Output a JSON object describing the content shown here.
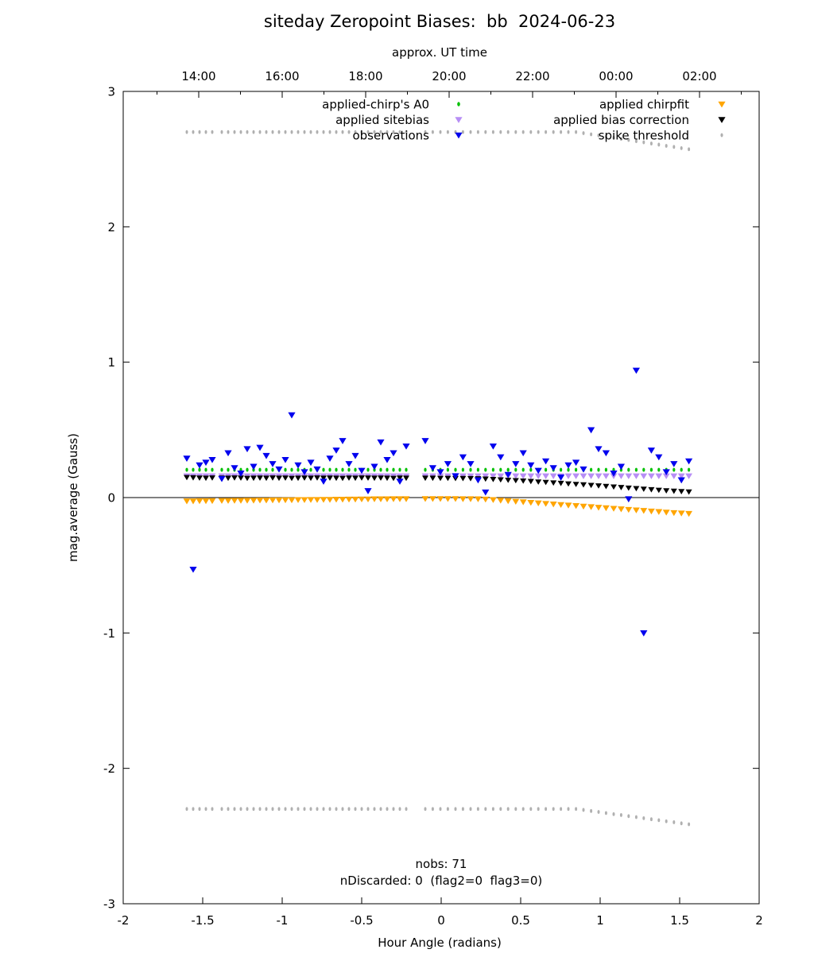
{
  "chart_data": {
    "type": "scatter",
    "title": "siteday Zeropoint Biases:  bb  2024-06-23",
    "x2label": "approx. UT time",
    "xlabel": "Hour Angle (radians)",
    "ylabel": "mag.average (Gauss)",
    "xlim": [
      -2,
      2
    ],
    "ylim": [
      -3,
      3
    ],
    "grid": false,
    "zero_line": true,
    "legend_position": "top-inside-two-columns",
    "notes": [
      "nobs: 71",
      "nDiscarded: 0  (flag2=0  flag3=0)"
    ],
    "x_ticks": [
      {
        "v": -2,
        "label": "-2"
      },
      {
        "v": -1.5,
        "label": "-1.5"
      },
      {
        "v": -1,
        "label": "-1"
      },
      {
        "v": -0.5,
        "label": "-0.5"
      },
      {
        "v": 0,
        "label": "0"
      },
      {
        "v": 0.5,
        "label": "0.5"
      },
      {
        "v": 1,
        "label": "1"
      },
      {
        "v": 1.5,
        "label": "1.5"
      },
      {
        "v": 2,
        "label": "2"
      }
    ],
    "x2_ticks": [
      {
        "v": -1.525,
        "label": "14:00"
      },
      {
        "v": -1.0,
        "label": "16:00"
      },
      {
        "v": -0.475,
        "label": "18:00"
      },
      {
        "v": 0.05,
        "label": "20:00"
      },
      {
        "v": 0.575,
        "label": "22:00"
      },
      {
        "v": 1.1,
        "label": "00:00"
      },
      {
        "v": 1.625,
        "label": "02:00"
      }
    ],
    "x2_minor_ticks": [
      -1.7875,
      -1.2625,
      -0.7375,
      -0.2125,
      0.3125,
      0.8375,
      1.3625,
      1.8875
    ],
    "y_ticks": [
      {
        "v": -3,
        "label": "-3"
      },
      {
        "v": -2,
        "label": "-2"
      },
      {
        "v": -1,
        "label": "-1"
      },
      {
        "v": 0,
        "label": "0"
      },
      {
        "v": 1,
        "label": "1"
      },
      {
        "v": 2,
        "label": "2"
      },
      {
        "v": 3,
        "label": "3"
      }
    ],
    "legend_entries": [
      {
        "label": "applied-chirp's A0",
        "marker": "dot",
        "color": "#00c000",
        "col": 0,
        "row": 0
      },
      {
        "label": "applied chirpfit",
        "marker": "triangle-down",
        "color": "#ffa500",
        "col": 1,
        "row": 0
      },
      {
        "label": "applied sitebias",
        "marker": "triangle-down",
        "color": "#b78ef5",
        "col": 0,
        "row": 1
      },
      {
        "label": "applied bias correction",
        "marker": "triangle-down",
        "color": "#000000",
        "col": 1,
        "row": 1
      },
      {
        "label": "observations",
        "marker": "triangle-down",
        "color": "#0000ee",
        "col": 0,
        "row": 2
      },
      {
        "label": "spike threshold",
        "marker": "small-dot",
        "color": "#b0b0b0",
        "col": 1,
        "row": 2
      }
    ],
    "x": [
      -1.6,
      -1.56,
      -1.52,
      -1.48,
      -1.44,
      -1.38,
      -1.34,
      -1.3,
      -1.26,
      -1.22,
      -1.18,
      -1.14,
      -1.1,
      -1.06,
      -1.02,
      -0.98,
      -0.94,
      -0.9,
      -0.86,
      -0.82,
      -0.78,
      -0.74,
      -0.7,
      -0.66,
      -0.62,
      -0.58,
      -0.54,
      -0.5,
      -0.46,
      -0.42,
      -0.38,
      -0.34,
      -0.3,
      -0.26,
      -0.22,
      -0.1,
      -0.053,
      -0.005,
      0.042,
      0.09,
      0.137,
      0.185,
      0.232,
      0.279,
      0.327,
      0.374,
      0.421,
      0.469,
      0.516,
      0.564,
      0.611,
      0.658,
      0.706,
      0.753,
      0.8,
      0.848,
      0.895,
      0.943,
      0.99,
      1.037,
      1.085,
      1.132,
      1.179,
      1.227,
      1.274,
      1.322,
      1.369,
      1.416,
      1.464,
      1.511,
      1.558
    ],
    "series": [
      {
        "name": "applied-chirp's A0",
        "marker": "dot",
        "color": "#00c000",
        "size": 1.6,
        "y_const": 0.205
      },
      {
        "name": "applied chirpfit",
        "marker": "triangle-down",
        "color": "#ffa500",
        "size": 4.4,
        "y": [
          -0.025,
          -0.025,
          -0.024,
          -0.024,
          -0.023,
          -0.022,
          -0.022,
          -0.021,
          -0.021,
          -0.02,
          -0.02,
          -0.019,
          -0.019,
          -0.018,
          -0.018,
          -0.017,
          -0.017,
          -0.016,
          -0.016,
          -0.015,
          -0.015,
          -0.014,
          -0.014,
          -0.013,
          -0.013,
          -0.012,
          -0.012,
          -0.011,
          -0.011,
          -0.01,
          -0.01,
          -0.01,
          -0.009,
          -0.009,
          -0.009,
          -0.008,
          -0.008,
          -0.008,
          -0.008,
          -0.008,
          -0.009,
          -0.009,
          -0.01,
          -0.012,
          -0.016,
          -0.02,
          -0.024,
          -0.028,
          -0.032,
          -0.036,
          -0.04,
          -0.044,
          -0.048,
          -0.052,
          -0.056,
          -0.06,
          -0.064,
          -0.068,
          -0.072,
          -0.076,
          -0.08,
          -0.084,
          -0.088,
          -0.092,
          -0.096,
          -0.1,
          -0.104,
          -0.108,
          -0.112,
          -0.115,
          -0.118
        ]
      },
      {
        "name": "applied sitebias",
        "marker": "triangle-down",
        "color": "#b78ef5",
        "size": 4.4,
        "y_const": 0.16
      },
      {
        "name": "applied bias correction",
        "marker": "triangle-down",
        "color": "#000000",
        "size": 4.0,
        "y": [
          0.15,
          0.148,
          0.146,
          0.145,
          0.147,
          0.146,
          0.145,
          0.147,
          0.146,
          0.144,
          0.145,
          0.146,
          0.145,
          0.147,
          0.145,
          0.146,
          0.144,
          0.145,
          0.146,
          0.145,
          0.147,
          0.145,
          0.146,
          0.145,
          0.144,
          0.146,
          0.145,
          0.147,
          0.146,
          0.145,
          0.146,
          0.145,
          0.144,
          0.146,
          0.145,
          0.145,
          0.145,
          0.144,
          0.144,
          0.143,
          0.143,
          0.142,
          0.141,
          0.139,
          0.136,
          0.133,
          0.13,
          0.127,
          0.124,
          0.121,
          0.117,
          0.114,
          0.11,
          0.107,
          0.103,
          0.099,
          0.096,
          0.092,
          0.088,
          0.084,
          0.08,
          0.076,
          0.072,
          0.068,
          0.064,
          0.06,
          0.056,
          0.052,
          0.049,
          0.046,
          0.043
        ]
      },
      {
        "name": "observations",
        "marker": "triangle-down",
        "color": "#0000ee",
        "size": 4.6,
        "y": [
          0.29,
          -0.53,
          0.24,
          0.26,
          0.28,
          0.14,
          0.33,
          0.22,
          0.18,
          0.36,
          0.23,
          0.37,
          0.31,
          0.25,
          0.21,
          0.28,
          0.61,
          0.24,
          0.19,
          0.26,
          0.21,
          0.12,
          0.29,
          0.35,
          0.42,
          0.25,
          0.31,
          0.2,
          0.05,
          0.23,
          0.41,
          0.28,
          0.33,
          0.12,
          0.38,
          0.42,
          0.22,
          0.19,
          0.25,
          0.16,
          0.3,
          0.25,
          0.13,
          0.04,
          0.38,
          0.3,
          0.17,
          0.25,
          0.33,
          0.24,
          0.2,
          0.27,
          0.22,
          0.15,
          0.24,
          0.26,
          0.21,
          0.5,
          0.36,
          0.33,
          0.18,
          0.23,
          -0.01,
          0.94,
          -1.0,
          0.35,
          0.3,
          0.19,
          0.25,
          0.13,
          0.27
        ]
      },
      {
        "name": "spike threshold upper",
        "marker": "small-dot",
        "color": "#b0b0b0",
        "size": 1.5,
        "y": [
          2.7,
          2.7,
          2.7,
          2.7,
          2.7,
          2.7,
          2.7,
          2.7,
          2.7,
          2.7,
          2.7,
          2.7,
          2.7,
          2.7,
          2.7,
          2.7,
          2.7,
          2.7,
          2.7,
          2.7,
          2.7,
          2.7,
          2.7,
          2.7,
          2.7,
          2.7,
          2.7,
          2.7,
          2.7,
          2.7,
          2.7,
          2.7,
          2.7,
          2.7,
          2.7,
          2.7,
          2.7,
          2.7,
          2.7,
          2.7,
          2.7,
          2.7,
          2.7,
          2.7,
          2.7,
          2.7,
          2.7,
          2.7,
          2.7,
          2.7,
          2.7,
          2.7,
          2.7,
          2.7,
          2.7,
          2.7,
          2.692,
          2.683,
          2.675,
          2.666,
          2.658,
          2.649,
          2.641,
          2.632,
          2.624,
          2.615,
          2.607,
          2.598,
          2.59,
          2.581,
          2.573
        ]
      },
      {
        "name": "spike threshold lower",
        "marker": "small-dot",
        "color": "#b0b0b0",
        "size": 1.5,
        "y": [
          -2.3,
          -2.3,
          -2.3,
          -2.3,
          -2.3,
          -2.3,
          -2.3,
          -2.3,
          -2.3,
          -2.3,
          -2.3,
          -2.3,
          -2.3,
          -2.3,
          -2.3,
          -2.3,
          -2.3,
          -2.3,
          -2.3,
          -2.3,
          -2.3,
          -2.3,
          -2.3,
          -2.3,
          -2.3,
          -2.3,
          -2.3,
          -2.3,
          -2.3,
          -2.3,
          -2.3,
          -2.3,
          -2.3,
          -2.3,
          -2.3,
          -2.3,
          -2.3,
          -2.3,
          -2.3,
          -2.3,
          -2.3,
          -2.3,
          -2.3,
          -2.3,
          -2.3,
          -2.3,
          -2.3,
          -2.3,
          -2.3,
          -2.3,
          -2.3,
          -2.3,
          -2.3,
          -2.3,
          -2.3,
          -2.3,
          -2.307,
          -2.315,
          -2.322,
          -2.33,
          -2.338,
          -2.345,
          -2.353,
          -2.36,
          -2.368,
          -2.376,
          -2.383,
          -2.391,
          -2.398,
          -2.406,
          -2.413
        ]
      }
    ]
  },
  "colors": {
    "background": "#ffffff",
    "axis": "#000000",
    "a0_green": "#00c000",
    "chirpfit_orange": "#ffa500",
    "sitebias_violet": "#b78ef5",
    "bias_black": "#000000",
    "observations_blue": "#0000ee",
    "threshold_gray": "#b0b0b0"
  }
}
